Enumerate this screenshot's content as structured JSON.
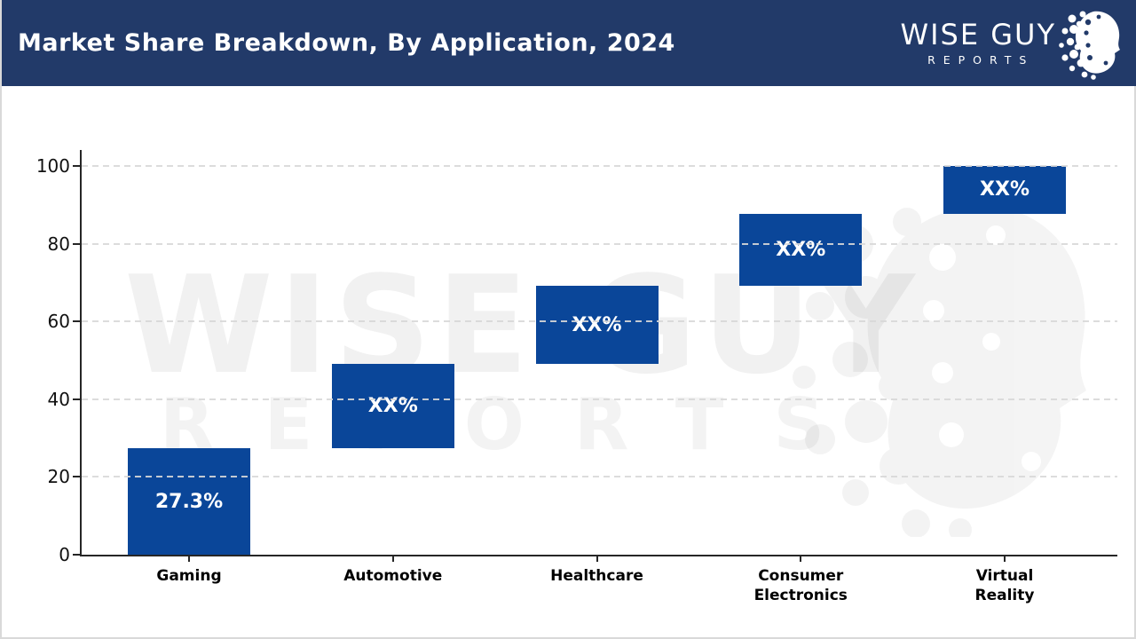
{
  "header": {
    "title": "Market Share Breakdown, By Application, 2024"
  },
  "logo": {
    "line1": "WISE GUY",
    "line2": "REPORTS",
    "head_icon": "dotted-head-profile"
  },
  "watermark": {
    "line1": "WISE GUY",
    "line2": "REPORTS",
    "head_icon": "dotted-head-profile"
  },
  "chart_data": {
    "type": "bar",
    "subtype": "waterfall",
    "title": "Market Share Breakdown, By Application, 2024",
    "categories": [
      "Gaming",
      "Automotive",
      "Healthcare",
      "Consumer Electronics",
      "Virtual Reality"
    ],
    "bars": [
      {
        "category": "Gaming",
        "start": 0,
        "end": 27.3,
        "label": "27.3%"
      },
      {
        "category": "Automotive",
        "start": 27.3,
        "end": 49.0,
        "label": "XX%"
      },
      {
        "category": "Healthcare",
        "start": 49.0,
        "end": 69.1,
        "label": "XX%"
      },
      {
        "category": "Consumer Electronics",
        "start": 69.1,
        "end": 87.7,
        "label": "XX%"
      },
      {
        "category": "Virtual Reality",
        "start": 87.7,
        "end": 100.0,
        "label": "XX%"
      }
    ],
    "xlabel": "",
    "ylabel": "",
    "ylim": [
      0,
      100
    ],
    "yticks": [
      0,
      20,
      40,
      60,
      80,
      100
    ],
    "grid": "horizontal dashed",
    "legend": "none",
    "bar_color": "#0a4699",
    "bar_label_color": "#ffffff",
    "grid_color": "#d8d8d8",
    "axis_color": "#262626",
    "header_bg_color": "#223a69"
  }
}
